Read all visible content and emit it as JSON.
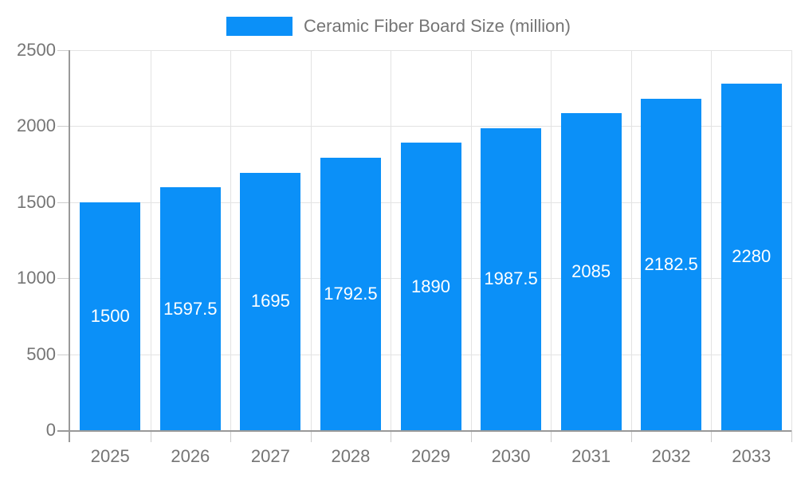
{
  "chart_data": {
    "type": "bar",
    "title": "Ceramic Fiber Board Size (million)",
    "legend_entries": [
      "Ceramic Fiber Board Size (million)"
    ],
    "legend_position": "top-center",
    "categories": [
      "2025",
      "2026",
      "2027",
      "2028",
      "2029",
      "2030",
      "2031",
      "2032",
      "2033"
    ],
    "series": [
      {
        "name": "Ceramic Fiber Board Size (million)",
        "values": [
          1500,
          1597.5,
          1695,
          1792.5,
          1890,
          1987.5,
          2085,
          2182.5,
          2280
        ]
      }
    ],
    "xlabel": "",
    "ylabel": "",
    "ylim": [
      0,
      2500
    ],
    "yticks": [
      0,
      500,
      1000,
      1500,
      2000,
      2500
    ],
    "grid": true,
    "bar_label_position": "inside-center",
    "colors": {
      "bar": "#0B90F8",
      "grid_line": "#E3E3E3",
      "axis_line": "#999999",
      "tick_mark": "#CCCCCC",
      "axis_text": "#757575",
      "legend_text": "#757575",
      "bar_label_text": "#FFFFFF",
      "background": "#FFFFFF"
    }
  }
}
